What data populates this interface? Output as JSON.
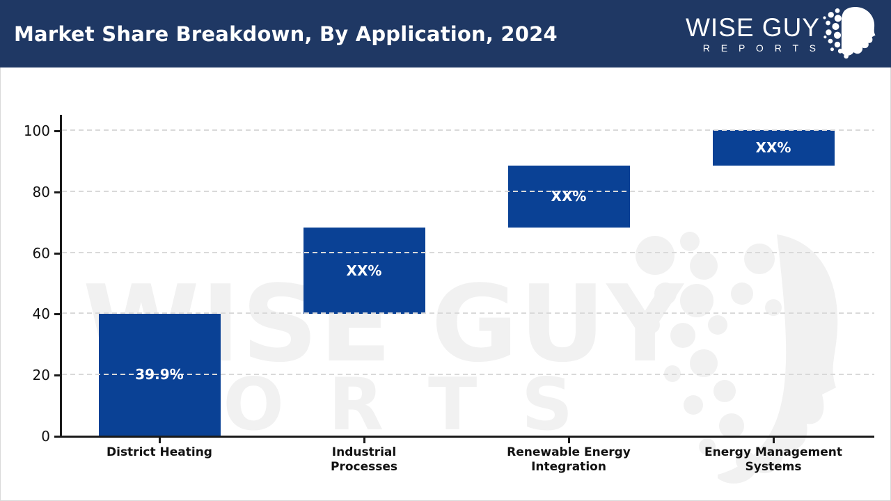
{
  "header": {
    "title": "Market Share Breakdown, By Application, 2024",
    "bg_color": "#1f3864",
    "logo": {
      "line1": "WISE GUY",
      "line2": "R E P O R T S"
    }
  },
  "watermark": {
    "line1": "WISE GUY",
    "line2": "P O R T S"
  },
  "chart_data": {
    "type": "bar",
    "subtype": "waterfall",
    "title": "Market Share Breakdown, By Application, 2024",
    "categories": [
      "District Heating",
      "Industrial\nProcesses",
      "Renewable Energy\nIntegration",
      "Energy Management\nSystems"
    ],
    "segments": [
      {
        "category": "District Heating",
        "start": 0,
        "end": 39.9,
        "value": 39.9,
        "label": "39.9%"
      },
      {
        "category": "Industrial Processes",
        "start": 39.9,
        "end": 68.1,
        "value": 28.2,
        "label": "XX%"
      },
      {
        "category": "Renewable Energy Integration",
        "start": 68.1,
        "end": 88.4,
        "value": 20.3,
        "label": "XX%"
      },
      {
        "category": "Energy Management Systems",
        "start": 88.4,
        "end": 100,
        "value": 11.6,
        "label": "XX%"
      }
    ],
    "xlabel": "",
    "ylabel": "",
    "yticks": [
      0,
      20,
      40,
      60,
      80,
      100
    ],
    "ylim": [
      0,
      105
    ],
    "bar_color": "#0a4195",
    "grid": {
      "visible": true,
      "style": "dashed",
      "color": "#d9d9d9",
      "over_bars": true
    },
    "legend": null
  }
}
